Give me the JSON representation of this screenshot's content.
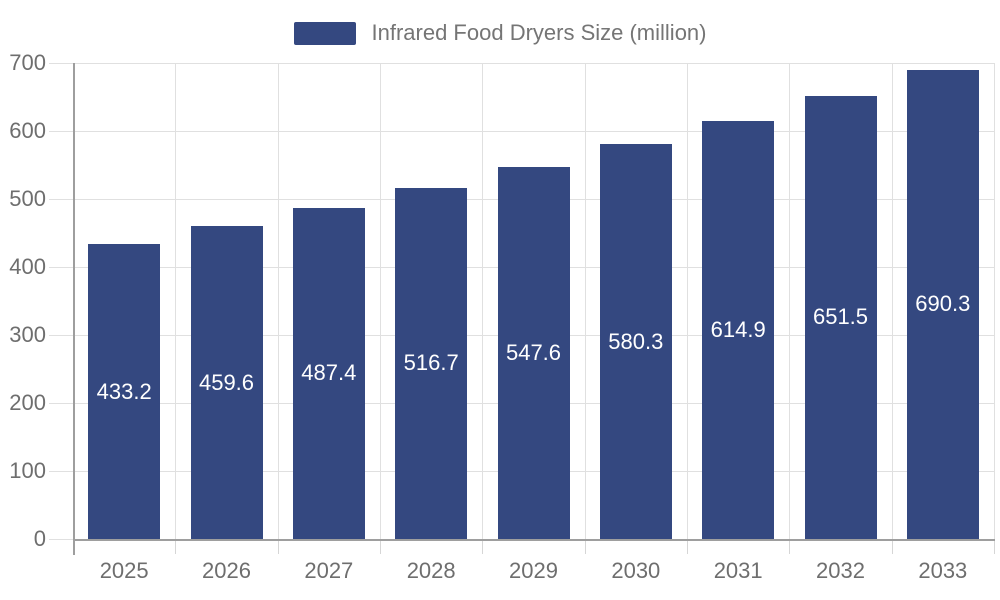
{
  "legend": {
    "label": "Infrared Food Dryers Size (million)"
  },
  "chart_data": {
    "type": "bar",
    "title": "",
    "series_name": "Infrared Food Dryers Size (million)",
    "categories": [
      "2025",
      "2026",
      "2027",
      "2028",
      "2029",
      "2030",
      "2031",
      "2032",
      "2033"
    ],
    "values": [
      433.2,
      459.6,
      487.4,
      516.7,
      547.6,
      580.3,
      614.9,
      651.5,
      690.3
    ],
    "value_labels": [
      "433.2",
      "459.6",
      "487.4",
      "516.7",
      "547.6",
      "580.3",
      "614.9",
      "651.5",
      "690.3"
    ],
    "xlabel": "",
    "ylabel": "",
    "ylim": [
      0,
      700
    ],
    "yticks": [
      0,
      100,
      200,
      300,
      400,
      500,
      600,
      700
    ],
    "grid": true,
    "legend_position": "top-center",
    "value_label_position": "inside-middle",
    "colors": {
      "bar": "#344880",
      "value_label": "#ffffff",
      "axis_text": "#6e6e6e",
      "legend_text": "#757575",
      "gridline": "#e0e0e0",
      "tick": "#d6d6d6",
      "axis_line": "#9e9e9e",
      "background": "#ffffff"
    }
  }
}
